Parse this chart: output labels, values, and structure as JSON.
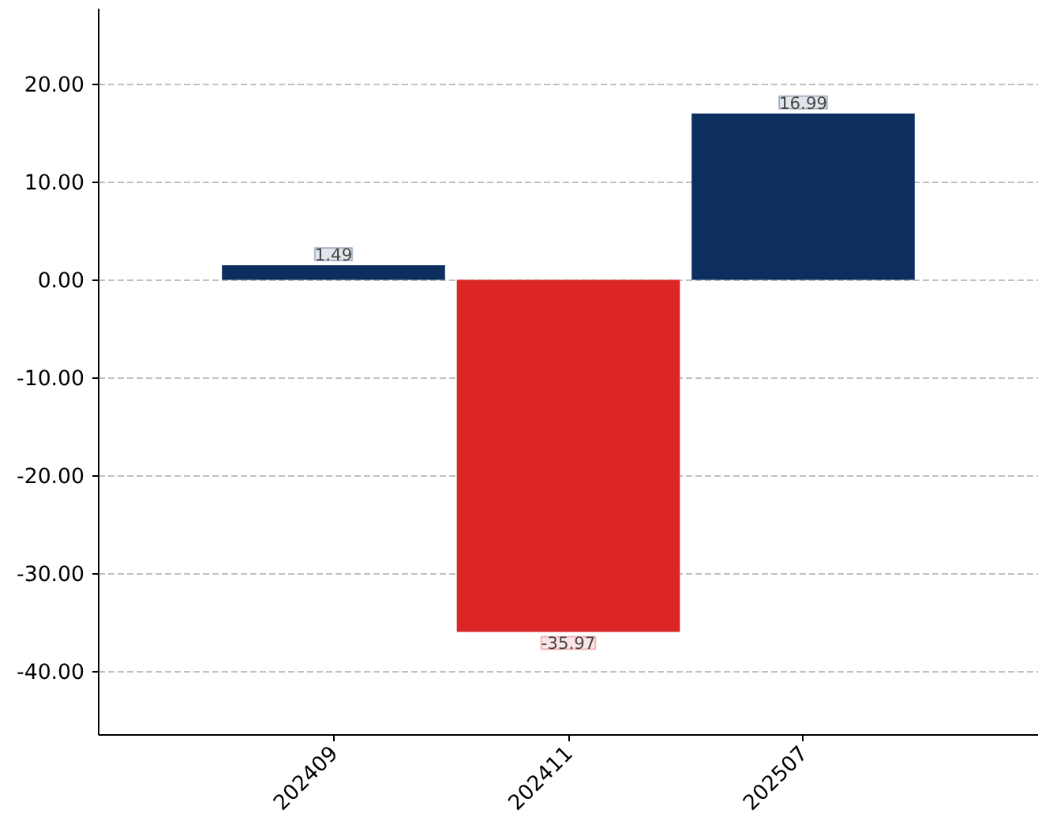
{
  "chart_data": {
    "type": "bar",
    "categories": [
      "202409",
      "202411",
      "202507"
    ],
    "values": [
      1.49,
      -35.97,
      16.99
    ],
    "colors": [
      "#0c2f5f",
      "#dc2626",
      "#0c2f5f"
    ],
    "data_labels": true,
    "ylim": [
      -46.5,
      27.7
    ],
    "yticks": [
      {
        "value": -40,
        "label": "-40.00"
      },
      {
        "value": -30,
        "label": "-30.00"
      },
      {
        "value": -20,
        "label": "-20.00"
      },
      {
        "value": -10,
        "label": "-10.00"
      },
      {
        "value": 0,
        "label": "0.00"
      },
      {
        "value": 10,
        "label": "10.00"
      },
      {
        "value": 20,
        "label": "20.00"
      }
    ],
    "grid": "y"
  }
}
